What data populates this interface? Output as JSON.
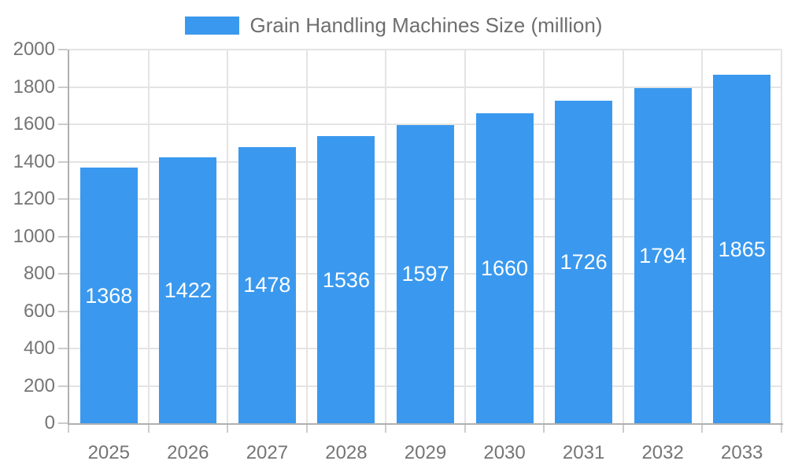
{
  "chart_data": {
    "type": "bar",
    "title": "Grain Handling Machines Size (million)",
    "legend": [
      "Grain Handling Machines Size (million)"
    ],
    "legend_position": "top-center",
    "categories": [
      "2025",
      "2026",
      "2027",
      "2028",
      "2029",
      "2030",
      "2031",
      "2032",
      "2033"
    ],
    "series": [
      {
        "name": "Grain Handling Machines Size (million)",
        "values": [
          1368,
          1422,
          1478,
          1536,
          1597,
          1660,
          1726,
          1794,
          1865
        ]
      }
    ],
    "xlabel": "",
    "ylabel": "",
    "ylim": [
      0,
      2000
    ],
    "ytick_step": 200,
    "yticks": [
      0,
      200,
      400,
      600,
      800,
      1000,
      1200,
      1400,
      1600,
      1800,
      2000
    ],
    "grid": true,
    "bar_label_position": "inside-center",
    "colors": {
      "bar": "#3a99ee",
      "bar_label": "#ffffff",
      "axis_text": "#757575",
      "legend_text": "#6e6e6e",
      "grid_line": "#e4e4e4",
      "axis_line": "#b0b0b0",
      "tick": "#cccccc",
      "background": "#ffffff"
    }
  }
}
